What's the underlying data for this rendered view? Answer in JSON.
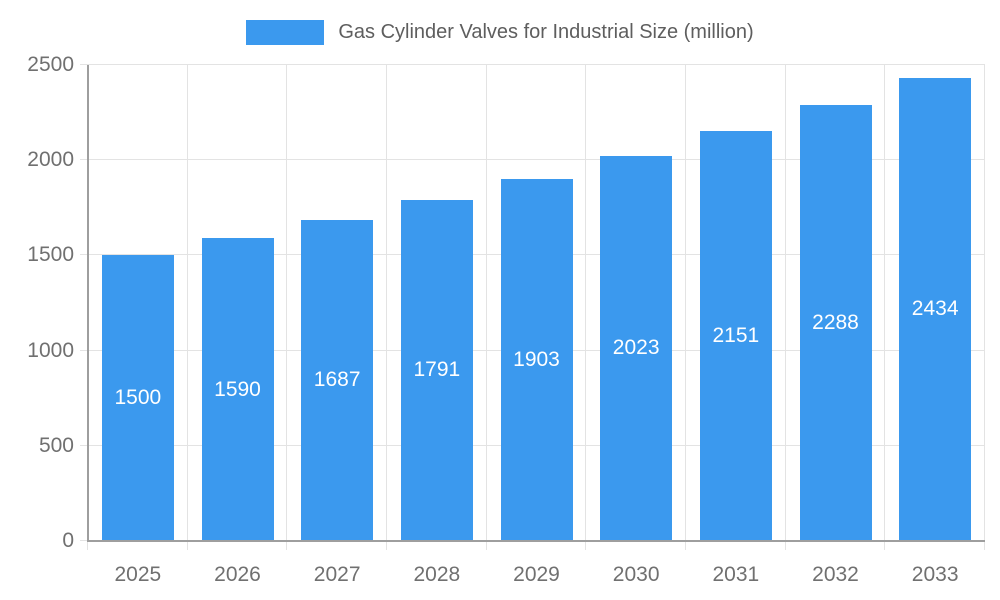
{
  "chart_data": {
    "type": "bar",
    "title": "Gas Cylinder Valves for Industrial Size (million)",
    "legend": {
      "position": "top",
      "entries": [
        "Gas Cylinder Valves for Industrial Size (million)"
      ]
    },
    "categories": [
      "2025",
      "2026",
      "2027",
      "2028",
      "2029",
      "2030",
      "2031",
      "2032",
      "2033"
    ],
    "series": [
      {
        "name": "Gas Cylinder Valves for Industrial Size (million)",
        "values": [
          1500,
          1590,
          1687,
          1791,
          1903,
          2023,
          2151,
          2288,
          2434
        ]
      }
    ],
    "data_labels": [
      "1500",
      "1590",
      "1687",
      "1791",
      "1903",
      "2023",
      "2151",
      "2288",
      "2434"
    ],
    "xlabel": "",
    "ylabel": "",
    "ylim": [
      0,
      2500
    ],
    "yticks": [
      0,
      500,
      1000,
      1500,
      2000,
      2500
    ],
    "grid": true,
    "colors": {
      "bar": "#3B99EE",
      "value_label": "#FFFFFF",
      "grid": "#E3E3E3",
      "axis": "#9E9E9E",
      "tick_text": "#707070",
      "title_text": "#5E5E5E"
    }
  }
}
